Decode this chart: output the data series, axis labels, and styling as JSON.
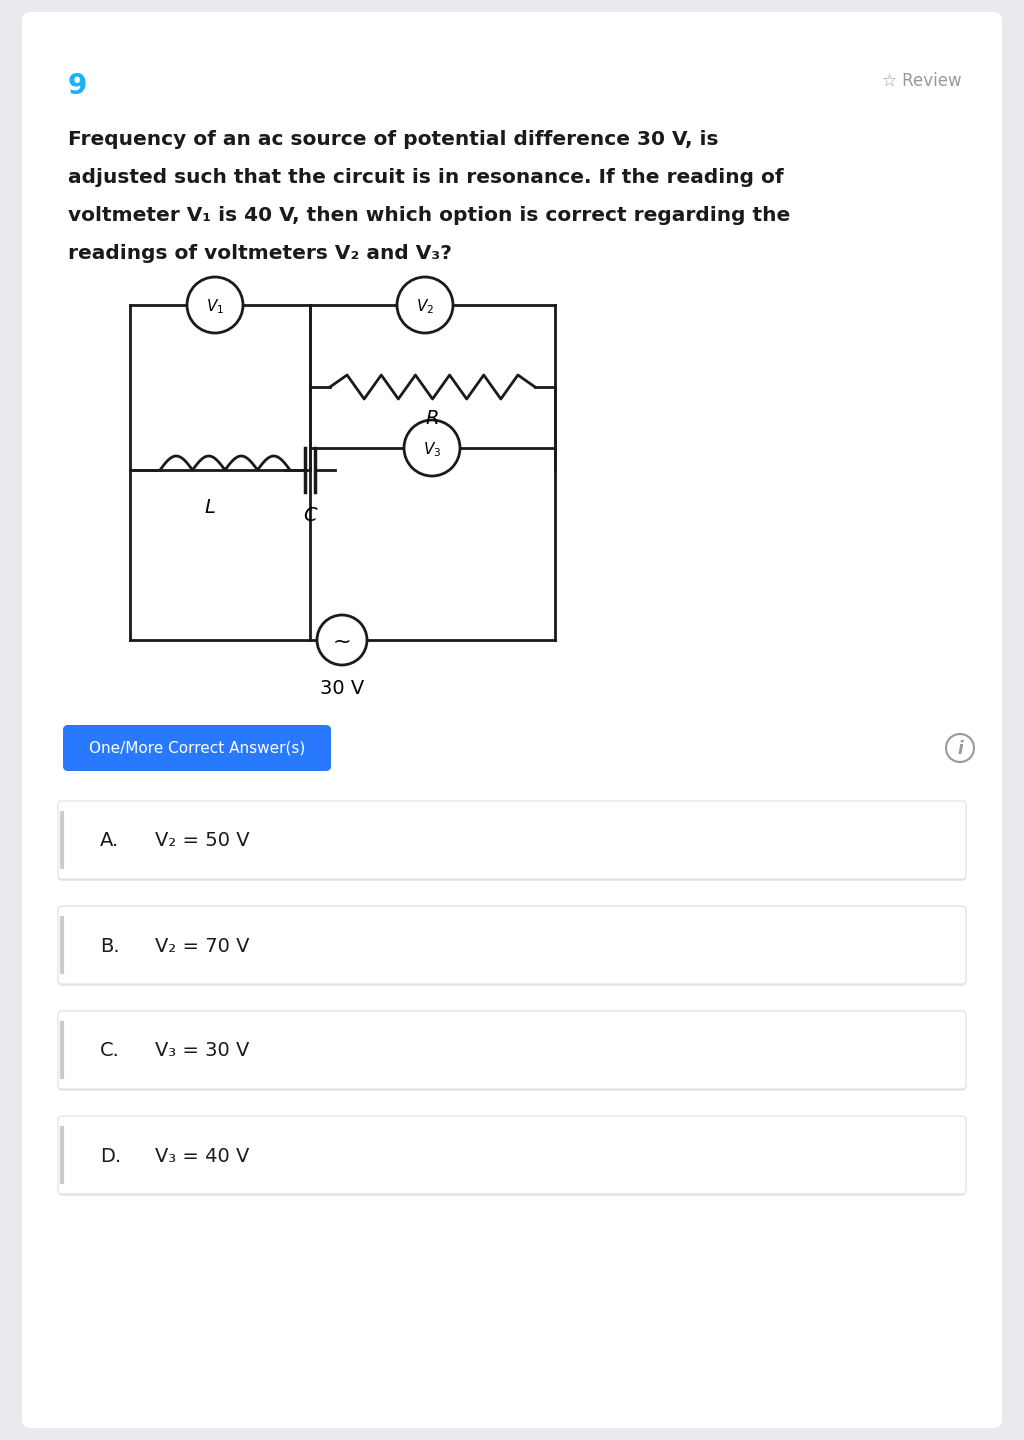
{
  "question_number": "9",
  "review_text": "☆ Review",
  "question_text_lines": [
    "Frequency of an ac source of potential difference 30 V, is",
    "adjusted such that the circuit is in resonance. If the reading of",
    "voltmeter V₁ is 40 V, then which option is correct regarding the",
    "readings of voltmeters V₂ and V₃?"
  ],
  "source_voltage": "30 V",
  "answer_type_label": "One/More Correct Answer(s)",
  "options": [
    {
      "label": "A.",
      "text": "V₂ = 50 V"
    },
    {
      "label": "B.",
      "text": "V₂ = 70 V"
    },
    {
      "label": "C.",
      "text": "V₃ = 30 V"
    },
    {
      "label": "D.",
      "text": "V₃ = 40 V"
    }
  ],
  "bg_color": "#e8eaf0",
  "card_color": "#ffffff",
  "question_num_color": "#1cb0f6",
  "review_color": "#999999",
  "answer_btn_color": "#2979ff",
  "answer_btn_text_color": "#ffffff",
  "option_box_color": "#ffffff",
  "option_border_color": "#e0e0e0",
  "circuit_line_color": "#1a1a1a",
  "text_color": "#1a1a1a",
  "info_icon_color": "#999999"
}
